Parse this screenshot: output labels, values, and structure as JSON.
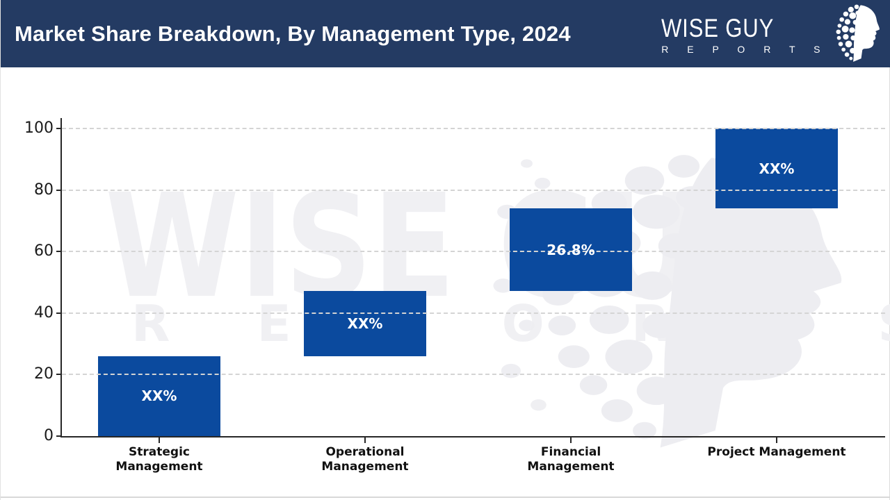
{
  "header": {
    "title": "Market Share Breakdown, By Management Type, 2024",
    "bg_color": "#243b63",
    "logo": {
      "line1": "WISE GUY",
      "line2": "R E P O R T S"
    }
  },
  "watermark": {
    "line1": "WISE GUY",
    "line2": "R E P O R T S"
  },
  "chart_data": {
    "type": "bar",
    "subtype": "floating-waterfall",
    "title": "Market Share Breakdown, By Management Type, 2024",
    "categories": [
      "Strategic Management",
      "Operational Management",
      "Financial Management",
      "Project Management"
    ],
    "category_lines": [
      [
        "Strategic",
        "Management"
      ],
      [
        "Operational",
        "Management"
      ],
      [
        "Financial",
        "Management"
      ],
      [
        "Project Management"
      ]
    ],
    "segments": [
      {
        "category": "Strategic Management",
        "start": 0,
        "end": 26,
        "label": "XX%"
      },
      {
        "category": "Operational Management",
        "start": 26,
        "end": 47.2,
        "label": "XX%"
      },
      {
        "category": "Financial Management",
        "start": 47.2,
        "end": 74,
        "label": "26.8%"
      },
      {
        "category": "Project Management",
        "start": 74,
        "end": 100,
        "label": "XX%"
      }
    ],
    "yticks": [
      0,
      20,
      40,
      60,
      80,
      100
    ],
    "ylim": [
      0,
      103.5
    ],
    "xlabel": "",
    "ylabel": "",
    "grid": "horizontal-dashed",
    "legend": "none",
    "bar_color": "#0b4a9e",
    "bar_label_color": "#ffffff",
    "axis_color": "#262626",
    "grid_color": "#d4d4d4"
  },
  "colors": {
    "header_bg": "#243b63",
    "bar_blue": "#0b4a9e",
    "watermark_gray": "#f0f0f3"
  }
}
